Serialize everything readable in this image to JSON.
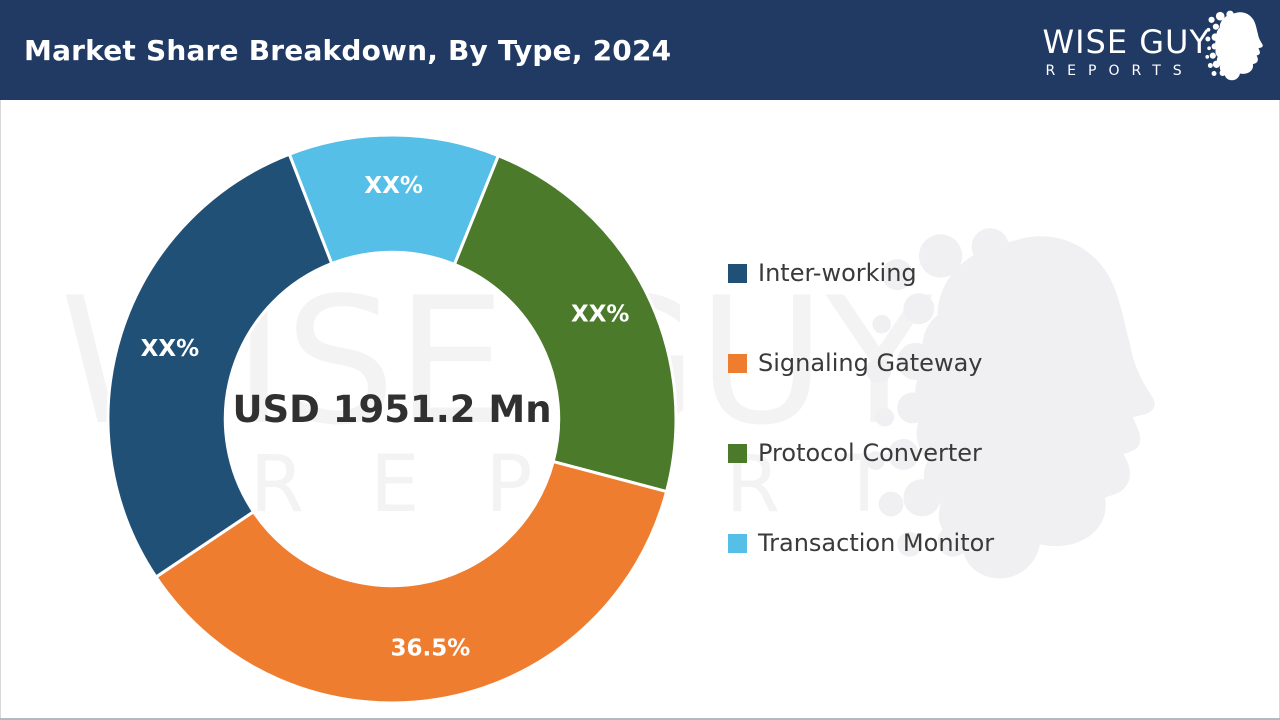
{
  "header": {
    "title": "Market Share Breakdown, By Type, 2024",
    "logo": {
      "line1": "WISE GUY",
      "line2": "REPORTS"
    }
  },
  "watermark": {
    "line1": "WISE GUY",
    "line2": "REPORTS"
  },
  "chart_data": {
    "type": "donut",
    "title": "Market Share Breakdown, By Type, 2024",
    "center_label": "USD 1951.2 Mn",
    "start_angle_deg": -21.2,
    "inner_radius_ratio": 0.587,
    "legend_position": "right",
    "segments": [
      {
        "label": "Transaction Monitor",
        "value": 12.0,
        "display_label": "XX%",
        "color": "#55bfe7"
      },
      {
        "label": "Protocol Converter",
        "value": 23.0,
        "display_label": "XX%",
        "color": "#4a7a2a"
      },
      {
        "label": "Signaling Gateway",
        "value": 36.5,
        "display_label": "36.5%",
        "color": "#ef7d30"
      },
      {
        "label": "Inter-working",
        "value": 28.5,
        "display_label": "XX%",
        "color": "#215077"
      }
    ]
  },
  "legend": {
    "items": [
      {
        "label": "Inter-working",
        "color": "#215077"
      },
      {
        "label": "Signaling Gateway",
        "color": "#ef7d30"
      },
      {
        "label": "Protocol Converter",
        "color": "#4a7a2a"
      },
      {
        "label": "Transaction Monitor",
        "color": "#55bfe7"
      }
    ]
  },
  "colors": {
    "header_background": "#203a63",
    "center_text": "#303030",
    "legend_text": "#3a3a3a",
    "watermark": "#f3f3f4",
    "bottom_line": "#b3b9c2"
  }
}
